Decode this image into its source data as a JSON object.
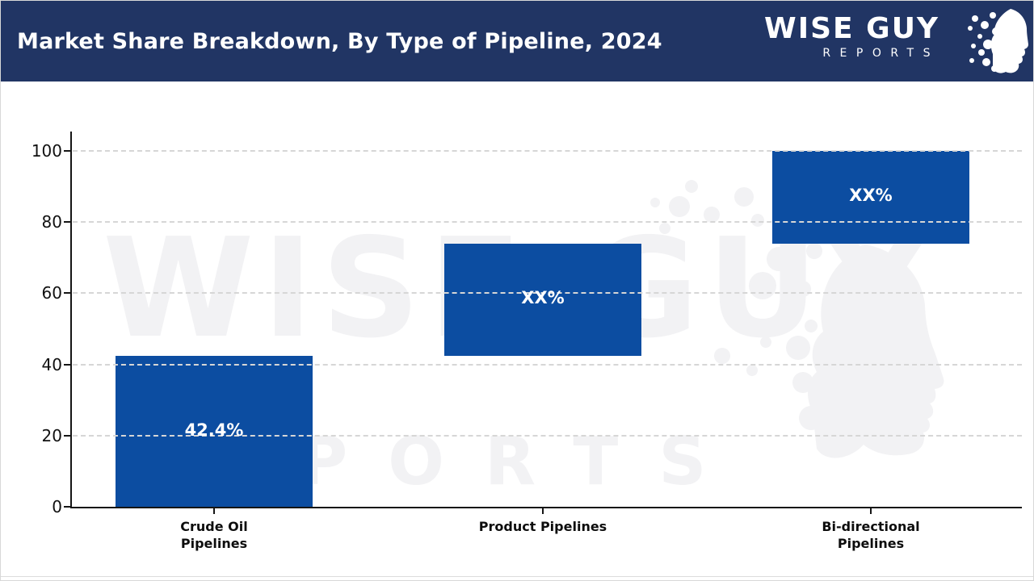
{
  "header": {
    "title": "Market Share Breakdown, By Type of Pipeline, 2024",
    "logo": {
      "name": "WISE GUY",
      "tagline": "REPORTS"
    }
  },
  "watermark": {
    "name": "WISE GUY",
    "tagline": "REPORTS"
  },
  "chart_data": {
    "type": "bar",
    "subtype": "waterfall",
    "title": "Market Share Breakdown, By Type of Pipeline, 2024",
    "categories": [
      "Crude Oil Pipelines",
      "Product Pipelines",
      "Bi-directional Pipelines"
    ],
    "category_lines": [
      [
        "Crude Oil",
        "Pipelines"
      ],
      [
        "Product Pipelines"
      ],
      [
        "Bi-directional",
        "Pipelines"
      ]
    ],
    "segments": [
      {
        "category": "Crude Oil Pipelines",
        "start": 0,
        "end": 42.4,
        "label": "42.4%"
      },
      {
        "category": "Product Pipelines",
        "start": 42.4,
        "end": 74,
        "label": "XX%"
      },
      {
        "category": "Bi-directional Pipelines",
        "start": 74,
        "end": 100,
        "label": "XX%"
      }
    ],
    "yticks": [
      0,
      20,
      40,
      60,
      80,
      100
    ],
    "ylim": [
      0,
      105
    ],
    "xlabel": "",
    "ylabel": "",
    "grid": "horizontal dashed gridlines drawn above bars",
    "legend": "none",
    "bar_color": "#0c4da1",
    "bar_label_color": "#ffffff"
  },
  "colors": {
    "header_bg": "#213564",
    "bar": "#0c4da1",
    "grid": "#d6d6d6",
    "axis": "#151515",
    "watermark": "#f2f2f4",
    "background": "#ffffff"
  }
}
